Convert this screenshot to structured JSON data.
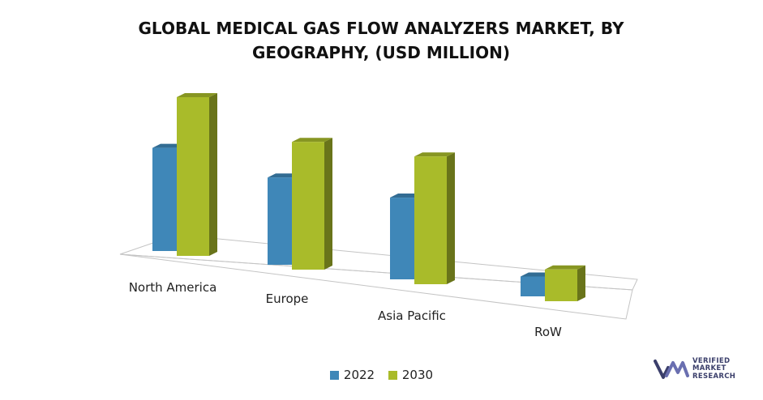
{
  "title_lines": [
    "GLOBAL MEDICAL GAS FLOW ANALYZERS MARKET, BY",
    "GEOGRAPHY, (USD MILLION)"
  ],
  "colors": {
    "s2022": "#3f87b8",
    "s2030": "#a9bb2a",
    "floor": "#c4c4c4"
  },
  "chart_data": {
    "type": "bar",
    "title": "GLOBAL MEDICAL GAS FLOW ANALYZERS MARKET, BY GEOGRAPHY, (USD MILLION)",
    "categories": [
      "North America",
      "Europe",
      "Asia Pacific",
      "RoW"
    ],
    "series": [
      {
        "name": "2022",
        "values": [
          130,
          110,
          103,
          25
        ]
      },
      {
        "name": "2030",
        "values": [
          200,
          161,
          161,
          40
        ]
      }
    ],
    "ylim": [
      0,
      200
    ],
    "xlabel": "",
    "ylabel": "",
    "legend": "bottom",
    "grid": false
  },
  "logo": {
    "lines": [
      "VERIFIED",
      "MARKET",
      "RESEARCH"
    ],
    "mark": "®"
  }
}
